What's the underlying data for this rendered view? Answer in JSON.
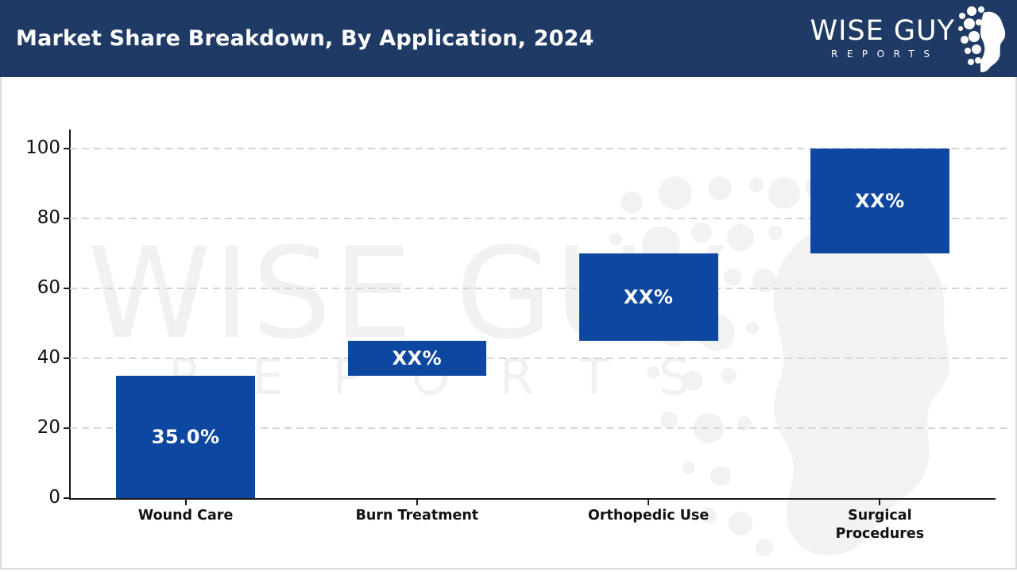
{
  "header": {
    "title": "Market Share Breakdown, By Application, 2024",
    "brand": {
      "name": "WISE GUY",
      "subtitle": "REPORTS"
    }
  },
  "watermark": {
    "line1": "WISE GUY",
    "line2": "REPORTS"
  },
  "colors": {
    "header_bg": "#1f3a64",
    "bar": "#0d47a0",
    "gridline": "#d5d5d5",
    "watermark": "#f1f1f1",
    "axis": "#1a1a1a"
  },
  "chart_data": {
    "type": "bar",
    "variant": "waterfall",
    "title": "Market Share Breakdown, By Application, 2024",
    "categories": [
      "Wound Care",
      "Burn Treatment",
      "Orthopedic Use",
      "Surgical Procedures"
    ],
    "segments": [
      {
        "label": "Wound Care",
        "start": 0,
        "end": 35,
        "value_label": "35.0%"
      },
      {
        "label": "Burn Treatment",
        "start": 35,
        "end": 45,
        "value_label": "XX%"
      },
      {
        "label": "Orthopedic Use",
        "start": 45,
        "end": 70,
        "value_label": "XX%"
      },
      {
        "label": "Surgical Procedures",
        "start": 70,
        "end": 100,
        "value_label": "XX%"
      }
    ],
    "xlabel": "",
    "ylabel": "",
    "ylim": [
      0,
      100
    ],
    "yticks": [
      0,
      20,
      40,
      60,
      80,
      100
    ],
    "grid": "dashed-horizontal",
    "legend": "none",
    "bar_color": "#0d47a0"
  }
}
